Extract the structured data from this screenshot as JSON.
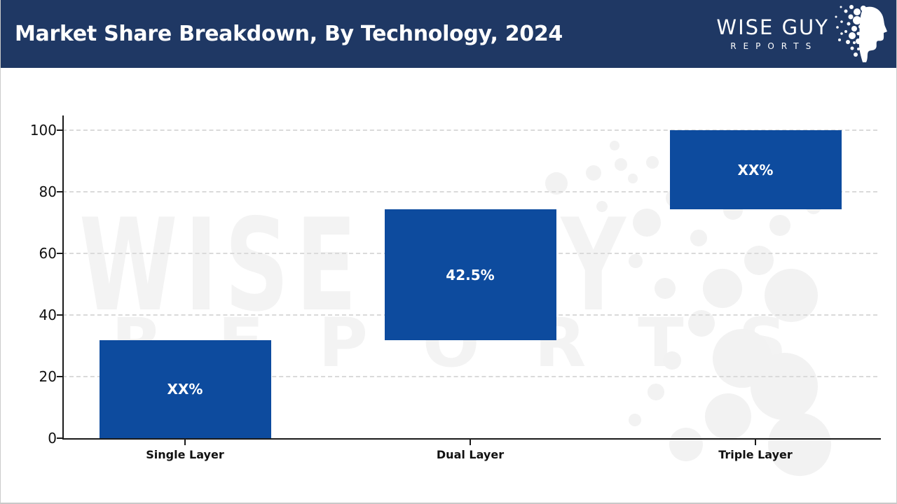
{
  "header": {
    "title": "Market Share Breakdown, By Technology, 2024",
    "bg_color": "#1f3864",
    "logo": {
      "line1": "WISE GUY",
      "line2": "REPORTS",
      "icon": "dotted-face-profile"
    }
  },
  "watermark": {
    "line1": "WISE GUY",
    "line2": "REPORTS"
  },
  "chart_data": {
    "type": "bar",
    "subtype": "floating-segment (waterfall-style, segments stack to 100%)",
    "title": "Market Share Breakdown, By Technology, 2024",
    "categories": [
      "Single Layer",
      "Dual Layer",
      "Triple Layer"
    ],
    "series": [
      {
        "name": "Market Share %",
        "segments": [
          {
            "category": "Single Layer",
            "start": 0,
            "end": 31.8,
            "label": "XX%"
          },
          {
            "category": "Dual Layer",
            "start": 31.8,
            "end": 74.3,
            "label": "42.5%"
          },
          {
            "category": "Triple Layer",
            "start": 74.3,
            "end": 100,
            "label": "XX%"
          }
        ]
      }
    ],
    "xlabel": "",
    "ylabel": "",
    "yticks": [
      0,
      20,
      40,
      60,
      80,
      100
    ],
    "ylim": [
      0,
      104
    ],
    "grid": "horizontal dashed",
    "legend": "none",
    "bar_color": "#0d4b9e",
    "label_color": "#ffffff"
  }
}
